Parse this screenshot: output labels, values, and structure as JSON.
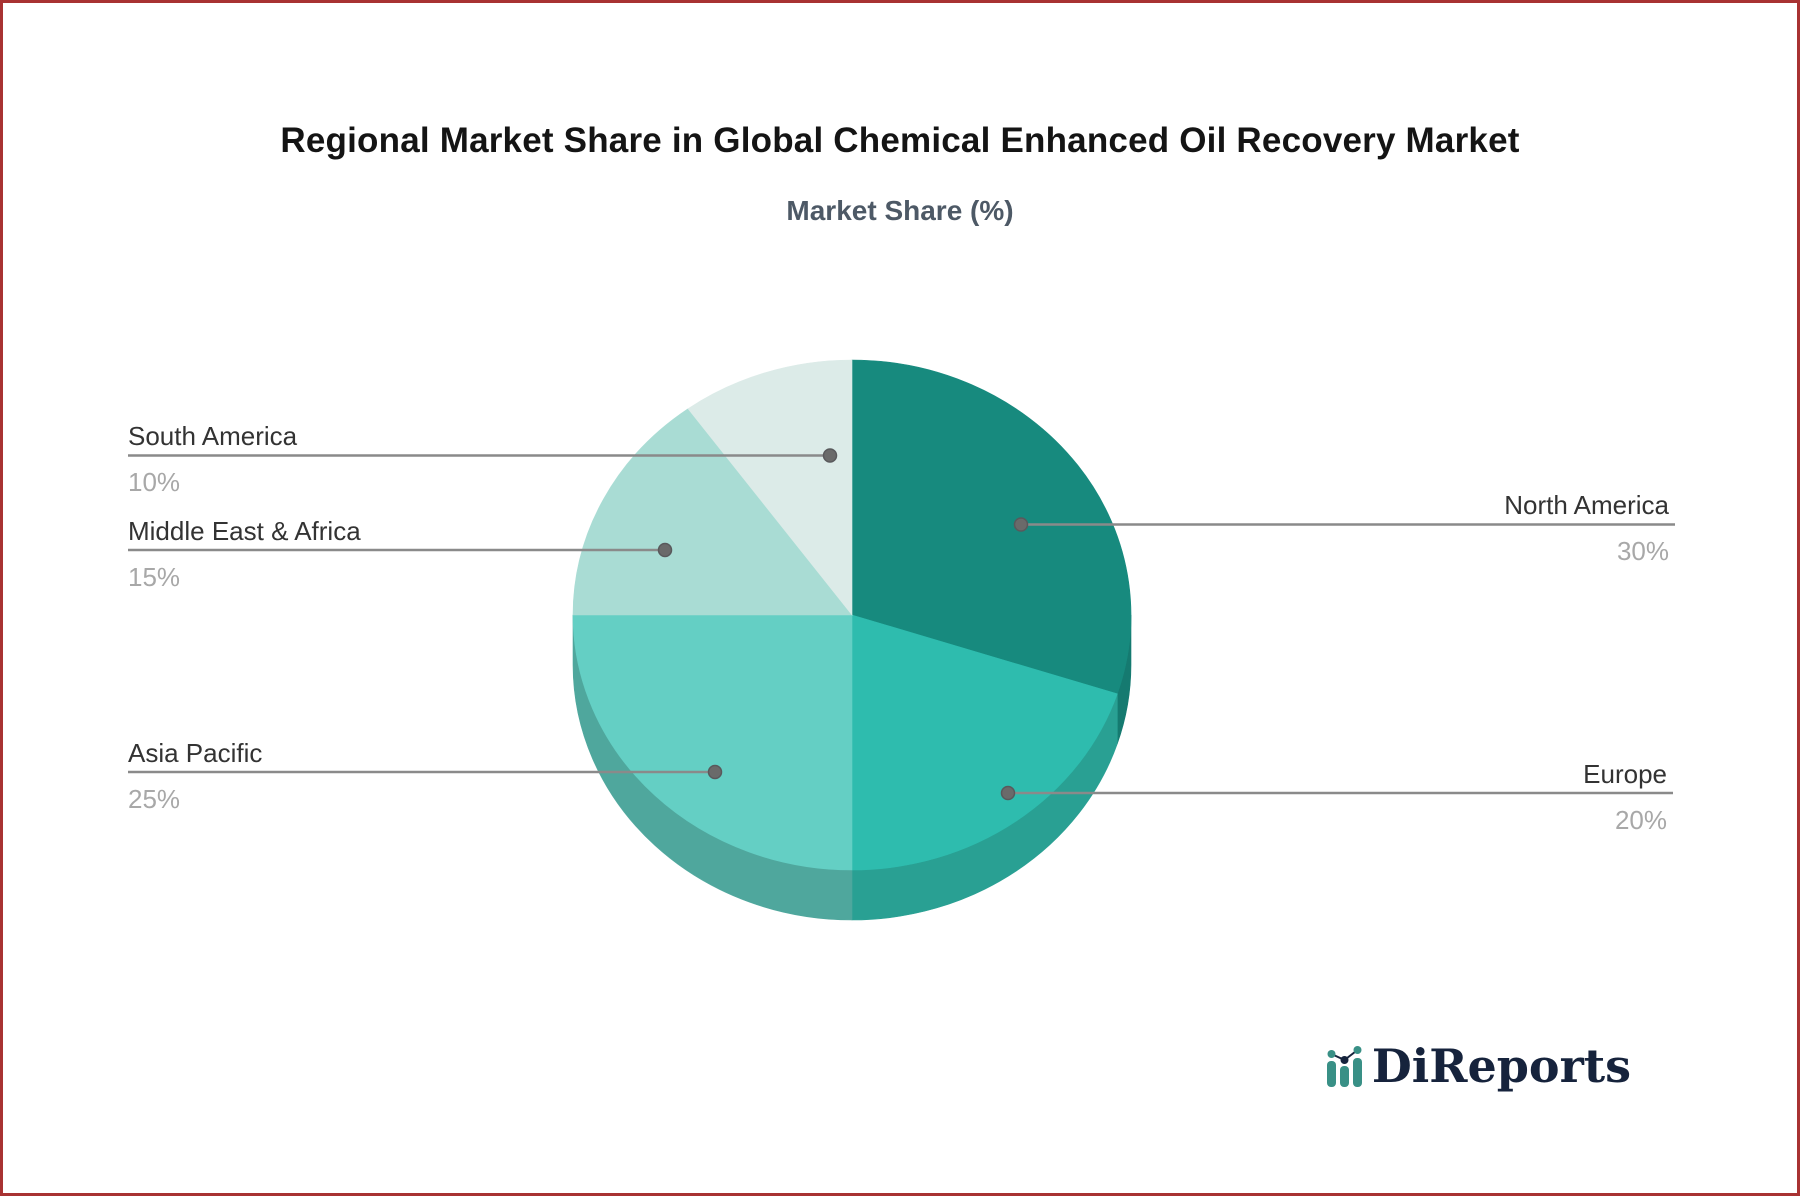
{
  "title": "Regional Market Share in Global Chemical Enhanced Oil Recovery Market",
  "subtitle": "Market Share (%)",
  "brand": {
    "name": "DiReports",
    "icon": "bar-line-chart-icon"
  },
  "chart_data": {
    "type": "pie",
    "title": "Regional Market Share in Global Chemical Enhanced Oil Recovery Market",
    "subtitle": "Market Share (%)",
    "unit": "%",
    "categories": [
      "North America",
      "Europe",
      "Asia Pacific",
      "Middle East & Africa",
      "South America"
    ],
    "values": [
      30,
      20,
      25,
      15,
      10
    ],
    "colors": [
      "#178a7e",
      "#2ebcae",
      "#64cfc4",
      "#a9dcd4",
      "#dcebe8"
    ],
    "rim_colors": [
      "#157a70",
      "#29a093",
      "#4fa79d",
      "#86beb6",
      "#b9d8d2"
    ],
    "start_angle_deg": 0,
    "direction": "clockwise",
    "effect": "3d-depth",
    "legend_position": "callout-lines",
    "callouts": [
      {
        "name": "North America",
        "pct": "30%"
      },
      {
        "name": "Europe",
        "pct": "20%"
      },
      {
        "name": "Asia Pacific",
        "pct": "25%"
      },
      {
        "name": "Middle East & Africa",
        "pct": "15%"
      },
      {
        "name": "South America",
        "pct": "10%"
      }
    ]
  }
}
